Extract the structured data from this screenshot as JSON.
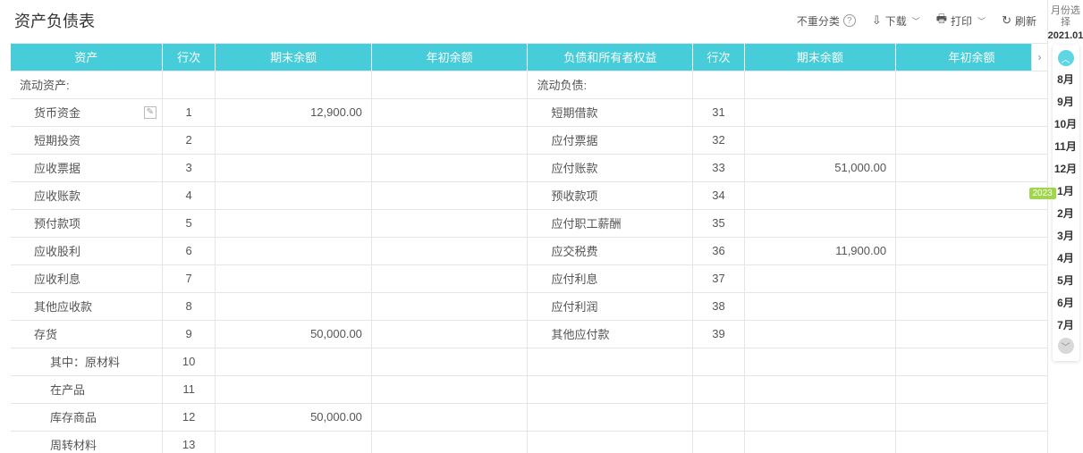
{
  "header": {
    "title": "资产负债表",
    "toolbar": {
      "reclass": "不重分类",
      "download": "下载",
      "print": "打印",
      "refresh": "刷新"
    }
  },
  "table_headers": {
    "asset": "资产",
    "line": "行次",
    "end_balance": "期末余额",
    "begin_balance": "年初余额",
    "liab": "负债和所有者权益",
    "line2": "行次",
    "end_balance2": "期末余额",
    "begin_balance2": "年初余额"
  },
  "rows": [
    {
      "asset": "流动资产:",
      "indent": 0,
      "line": "",
      "end": "",
      "begin": "",
      "liab": "流动负债:",
      "liab_indent": 0,
      "line2": "",
      "end2": "",
      "begin2": ""
    },
    {
      "asset": "货币资金",
      "indent": 1,
      "edit": true,
      "line": "1",
      "end": "12,900.00",
      "begin": "",
      "liab": "短期借款",
      "liab_indent": 1,
      "line2": "31",
      "end2": "",
      "begin2": ""
    },
    {
      "asset": "短期投资",
      "indent": 1,
      "line": "2",
      "end": "",
      "begin": "",
      "liab": "应付票据",
      "liab_indent": 1,
      "line2": "32",
      "end2": "",
      "begin2": ""
    },
    {
      "asset": "应收票据",
      "indent": 1,
      "line": "3",
      "end": "",
      "begin": "",
      "liab": "应付账款",
      "liab_indent": 1,
      "line2": "33",
      "end2": "51,000.00",
      "begin2": ""
    },
    {
      "asset": "应收账款",
      "indent": 1,
      "line": "4",
      "end": "",
      "begin": "",
      "liab": "预收款项",
      "liab_indent": 1,
      "line2": "34",
      "end2": "",
      "begin2": ""
    },
    {
      "asset": "预付款项",
      "indent": 1,
      "line": "5",
      "end": "",
      "begin": "",
      "liab": "应付职工薪酬",
      "liab_indent": 1,
      "line2": "35",
      "end2": "",
      "begin2": ""
    },
    {
      "asset": "应收股利",
      "indent": 1,
      "line": "6",
      "end": "",
      "begin": "",
      "liab": "应交税费",
      "liab_indent": 1,
      "line2": "36",
      "end2": "11,900.00",
      "begin2": ""
    },
    {
      "asset": "应收利息",
      "indent": 1,
      "line": "7",
      "end": "",
      "begin": "",
      "liab": "应付利息",
      "liab_indent": 1,
      "line2": "37",
      "end2": "",
      "begin2": ""
    },
    {
      "asset": "其他应收款",
      "indent": 1,
      "line": "8",
      "end": "",
      "begin": "",
      "liab": "应付利润",
      "liab_indent": 1,
      "line2": "38",
      "end2": "",
      "begin2": ""
    },
    {
      "asset": "存货",
      "indent": 1,
      "line": "9",
      "end": "50,000.00",
      "begin": "",
      "liab": "其他应付款",
      "liab_indent": 1,
      "line2": "39",
      "end2": "",
      "begin2": ""
    },
    {
      "asset": "其中：原材料",
      "indent": 2,
      "line": "10",
      "end": "",
      "begin": "",
      "liab": "",
      "liab_indent": 0,
      "line2": "",
      "end2": "",
      "begin2": ""
    },
    {
      "asset": "在产品",
      "indent": 2,
      "line": "11",
      "end": "",
      "begin": "",
      "liab": "",
      "liab_indent": 0,
      "line2": "",
      "end2": "",
      "begin2": ""
    },
    {
      "asset": "库存商品",
      "indent": 2,
      "line": "12",
      "end": "50,000.00",
      "begin": "",
      "liab": "",
      "liab_indent": 0,
      "line2": "",
      "end2": "",
      "begin2": ""
    },
    {
      "asset": "周转材料",
      "indent": 2,
      "line": "13",
      "end": "",
      "begin": "",
      "liab": "",
      "liab_indent": 0,
      "line2": "",
      "end2": "",
      "begin2": ""
    }
  ],
  "sidebar": {
    "label": "月份选择",
    "date": "2021.01",
    "year_badge": "2023",
    "months": [
      "8月",
      "9月",
      "10月",
      "11月",
      "12月",
      "1月",
      "2月",
      "3月",
      "4月",
      "5月",
      "6月",
      "7月"
    ]
  },
  "styling": {
    "header_bg": "#47cdd9",
    "header_text": "#ffffff",
    "border_color": "#e5e5e5",
    "text_color": "#555555",
    "accent": "#5fd6e3",
    "year_badge_bg": "#9fd64a"
  }
}
